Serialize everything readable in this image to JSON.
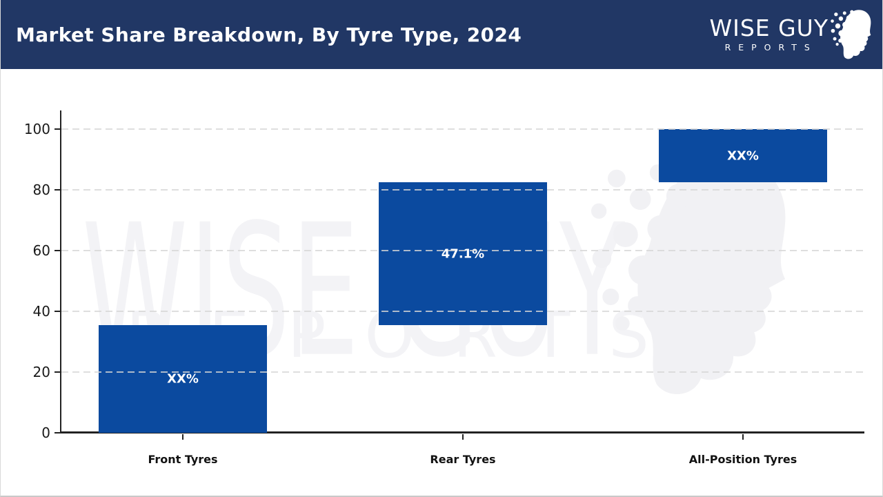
{
  "header": {
    "title": "Market Share Breakdown, By Tyre Type, 2024",
    "logo": {
      "line1": "WISE GUY",
      "line2": "REPORTS"
    },
    "bg_color": "#213765"
  },
  "watermark": {
    "line1": "WISE GUY",
    "line2": "REPORTS"
  },
  "chart_data": {
    "type": "bar",
    "subtype": "waterfall",
    "title": "Market Share Breakdown, By Tyre Type, 2024",
    "categories": [
      "Front Tyres",
      "Rear Tyres",
      "All-Position Tyres"
    ],
    "segments": [
      {
        "category": "Front Tyres",
        "start": 0,
        "end": 35.4,
        "label": "XX%"
      },
      {
        "category": "Rear Tyres",
        "start": 35.4,
        "end": 82.5,
        "label": "47.1%"
      },
      {
        "category": "All-Position Tyres",
        "start": 82.5,
        "end": 100,
        "label": "XX%"
      }
    ],
    "yticks": [
      0,
      20,
      40,
      60,
      80,
      100
    ],
    "ylim": [
      0,
      100
    ],
    "grid": "dashed-horizontal",
    "legend": "none",
    "bar_color": "#0B4A9F",
    "label_color": "#FFFFFF",
    "axis_color": "#222222",
    "gridline_color": "#D6D6D6"
  }
}
